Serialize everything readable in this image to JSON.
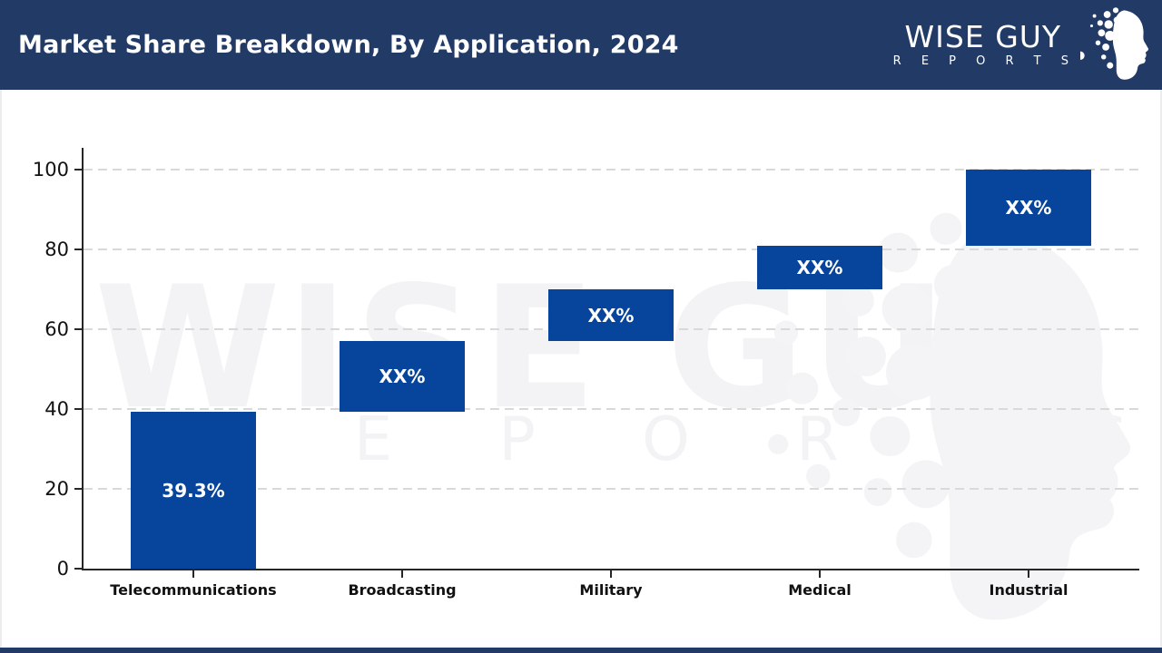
{
  "header": {
    "title": "Market Share Breakdown, By Application, 2024",
    "logo": {
      "line1": "WISE GUY",
      "line2": "R E P O R T S"
    }
  },
  "watermark": {
    "line1": "WISE GUY",
    "line2": "R E P O R T S"
  },
  "colors": {
    "header_navy": "#213a66",
    "bar_blue": "#07449c",
    "bar_label_white": "#ffffff",
    "gridline_gray": "#d9d9d9",
    "watermark_gray": "#f3f3f5"
  },
  "chart_data": {
    "type": "bar",
    "subtype": "waterfall",
    "title": "Market Share Breakdown, By Application, 2024",
    "categories": [
      "Telecommunications",
      "Broadcasting",
      "Military",
      "Medical",
      "Industrial"
    ],
    "segments": [
      {
        "start": 0,
        "end": 39.3
      },
      {
        "start": 39.3,
        "end": 57
      },
      {
        "start": 57,
        "end": 70
      },
      {
        "start": 70,
        "end": 81
      },
      {
        "start": 81,
        "end": 100
      }
    ],
    "bar_labels": [
      "39.3%",
      "XX%",
      "XX%",
      "XX%",
      "XX%"
    ],
    "yticks": [
      0,
      20,
      40,
      60,
      80,
      100
    ],
    "ylim": [
      0,
      105.5
    ],
    "xlabel": "",
    "ylabel": "",
    "grid": true,
    "legend": "none"
  }
}
